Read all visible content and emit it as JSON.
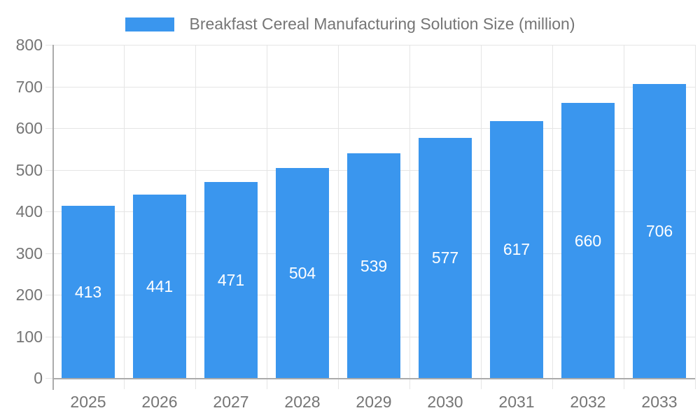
{
  "legend": {
    "label": "Breakfast Cereal Manufacturing Solution Size (million)",
    "swatch_color": "#3A96EE"
  },
  "chart_data": {
    "type": "bar",
    "title": "Breakfast Cereal Manufacturing Solution Size (million)",
    "categories": [
      "2025",
      "2026",
      "2027",
      "2028",
      "2029",
      "2030",
      "2031",
      "2032",
      "2033"
    ],
    "values": [
      413,
      441,
      471,
      504,
      539,
      577,
      617,
      660,
      706
    ],
    "xlabel": "",
    "ylabel": "",
    "ylim": [
      0,
      800
    ],
    "ytick_step": 100,
    "ytick_labels": [
      "0",
      "100",
      "200",
      "300",
      "400",
      "500",
      "600",
      "700",
      "800"
    ],
    "grid": true,
    "legend_position": "top",
    "value_labels": "inside-center",
    "colors": {
      "bar": "#3A96EE",
      "value_label": "#FFFFFF",
      "axis_text": "#757575",
      "grid_line": "#E5E5E5",
      "axis_line": "#ABABAB"
    }
  }
}
